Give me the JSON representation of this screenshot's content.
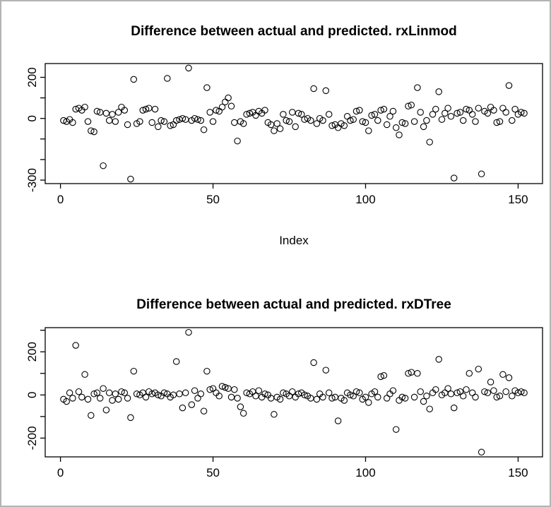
{
  "style": {
    "background": "#ffffff",
    "frame_border": "#b4b4b4",
    "point_stroke": "#000000",
    "marker": "open-circle"
  },
  "chart_data": [
    {
      "type": "scatter",
      "title": "Difference between actual and predicted. rxLinmod",
      "xlabel": "Index",
      "ylabel": "",
      "n_points": 152,
      "x_encoding": "observation index 1..152",
      "xlim": [
        -5,
        158
      ],
      "ylim": [
        -317,
        267
      ],
      "x_ticks": [
        {
          "v": 0,
          "label": "0"
        },
        {
          "v": 50,
          "label": "50"
        },
        {
          "v": 100,
          "label": "100"
        },
        {
          "v": 150,
          "label": "150"
        }
      ],
      "y_ticks": [
        {
          "v": -300,
          "label": "-300"
        },
        {
          "v": -200,
          "label": ""
        },
        {
          "v": -100,
          "label": ""
        },
        {
          "v": 0,
          "label": "0"
        },
        {
          "v": 100,
          "label": ""
        },
        {
          "v": 200,
          "label": "200"
        }
      ],
      "y": [
        -10,
        -15,
        -5,
        -20,
        45,
        50,
        40,
        55,
        -15,
        -60,
        -65,
        35,
        30,
        -230,
        25,
        -10,
        20,
        -15,
        30,
        55,
        40,
        -30,
        -295,
        190,
        -25,
        -15,
        40,
        45,
        50,
        -20,
        45,
        -40,
        -10,
        -15,
        195,
        -35,
        -30,
        -10,
        -5,
        0,
        -5,
        245,
        -10,
        0,
        -5,
        -10,
        -55,
        150,
        30,
        -15,
        40,
        35,
        55,
        80,
        100,
        60,
        -20,
        -110,
        -15,
        -25,
        20,
        25,
        30,
        15,
        35,
        25,
        40,
        -20,
        -30,
        -60,
        -25,
        -50,
        20,
        -10,
        -15,
        30,
        -40,
        25,
        20,
        -5,
        0,
        -10,
        145,
        -25,
        0,
        -10,
        135,
        20,
        -35,
        -30,
        -45,
        -25,
        -35,
        10,
        -10,
        -5,
        35,
        40,
        -15,
        -20,
        -60,
        15,
        20,
        -10,
        40,
        45,
        -30,
        10,
        35,
        -45,
        -80,
        -20,
        -25,
        60,
        65,
        -15,
        150,
        30,
        -40,
        -10,
        -115,
        20,
        45,
        130,
        -5,
        25,
        50,
        10,
        -290,
        25,
        30,
        -10,
        45,
        40,
        20,
        -15,
        50,
        -270,
        35,
        25,
        55,
        40,
        -20,
        -15,
        50,
        30,
        160,
        -10,
        45,
        20,
        30,
        25
      ]
    },
    {
      "type": "scatter",
      "title": "Difference between actual and predicted. rxDTree",
      "xlabel": "",
      "ylabel": "",
      "n_points": 152,
      "x_encoding": "observation index 1..152",
      "xlim": [
        -5,
        158
      ],
      "ylim": [
        -287,
        312
      ],
      "x_ticks": [
        {
          "v": 0,
          "label": "0"
        },
        {
          "v": 50,
          "label": "50"
        },
        {
          "v": 100,
          "label": "100"
        },
        {
          "v": 150,
          "label": "150"
        }
      ],
      "y_ticks": [
        {
          "v": -200,
          "label": "-200"
        },
        {
          "v": -100,
          "label": ""
        },
        {
          "v": 0,
          "label": "0"
        },
        {
          "v": 100,
          "label": ""
        },
        {
          "v": 200,
          "label": "200"
        },
        {
          "v": 300,
          "label": ""
        }
      ],
      "y": [
        -20,
        -30,
        10,
        -15,
        230,
        15,
        -10,
        95,
        -20,
        -95,
        5,
        10,
        -15,
        30,
        -70,
        10,
        -25,
        5,
        -20,
        15,
        10,
        -15,
        -105,
        110,
        5,
        0,
        10,
        -10,
        15,
        5,
        10,
        0,
        -5,
        10,
        5,
        -10,
        0,
        155,
        5,
        -60,
        10,
        290,
        -45,
        20,
        -15,
        5,
        -75,
        110,
        25,
        30,
        10,
        -5,
        40,
        35,
        30,
        -10,
        25,
        -15,
        -55,
        -85,
        10,
        5,
        15,
        -5,
        20,
        -10,
        5,
        0,
        -15,
        -90,
        -10,
        -20,
        10,
        5,
        -5,
        15,
        -10,
        5,
        10,
        0,
        -5,
        -15,
        150,
        -20,
        5,
        -10,
        115,
        10,
        -15,
        -10,
        -120,
        -15,
        -25,
        10,
        0,
        -5,
        15,
        10,
        -20,
        -10,
        -35,
        5,
        15,
        -10,
        85,
        90,
        -15,
        5,
        20,
        -160,
        -25,
        -10,
        -15,
        100,
        105,
        -10,
        100,
        15,
        -30,
        -5,
        -65,
        10,
        25,
        165,
        0,
        10,
        30,
        5,
        -60,
        10,
        15,
        -5,
        25,
        100,
        10,
        -10,
        120,
        -265,
        15,
        10,
        60,
        20,
        -10,
        -5,
        95,
        15,
        80,
        -5,
        20,
        10,
        15,
        10
      ]
    }
  ]
}
